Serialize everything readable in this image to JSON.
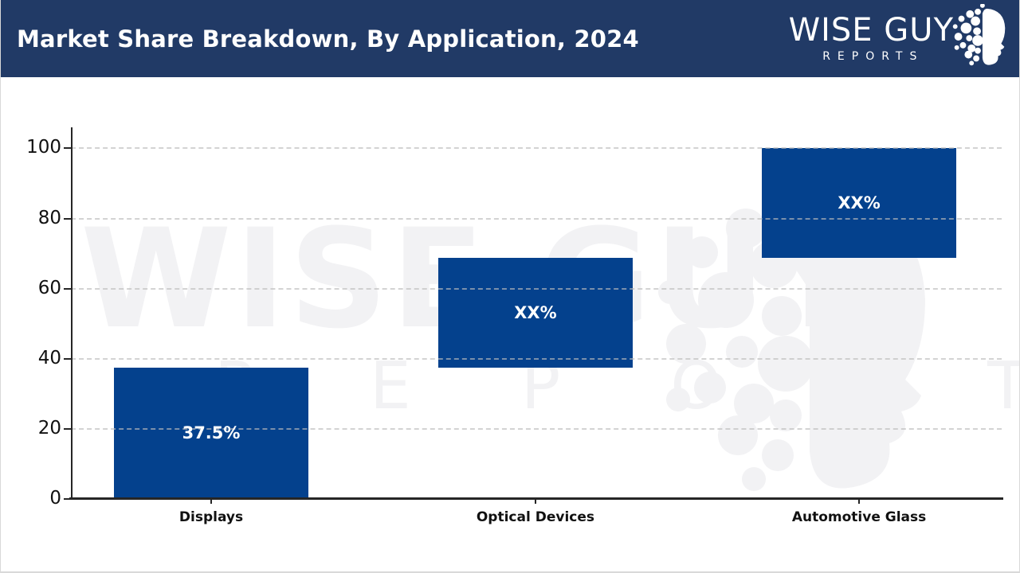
{
  "header": {
    "title": "Market Share Breakdown, By Application, 2024",
    "logo": {
      "primary": "WISE GUY",
      "secondary": "REPORTS"
    }
  },
  "watermark": {
    "primary": "WISE GUY",
    "secondary": "R E P O R T S"
  },
  "chart_data": {
    "type": "bar",
    "variant": "waterfall",
    "title": "Market Share Breakdown, By Application, 2024",
    "xlabel": "",
    "ylabel": "",
    "categories": [
      "Displays",
      "Optical Devices",
      "Automotive Glass"
    ],
    "segments": [
      {
        "category": "Displays",
        "start": 0,
        "end": 37.5,
        "label": "37.5%"
      },
      {
        "category": "Optical Devices",
        "start": 37.5,
        "end": 68.8,
        "label": "XX%"
      },
      {
        "category": "Automotive Glass",
        "start": 68.8,
        "end": 100,
        "label": "XX%"
      }
    ],
    "y_ticks": [
      0,
      20,
      40,
      60,
      80,
      100
    ],
    "ylim": [
      0,
      106
    ],
    "grid": true,
    "grid_style": "dashed",
    "legend": false,
    "bar_color": "#04418D",
    "colors": {
      "header_bg": "#213A66",
      "axis": "#262626",
      "gridline": "#D9D9D9",
      "bar_label": "#FFFFFF",
      "tick_label": "#111111",
      "watermark": "#F2F2F4"
    }
  }
}
